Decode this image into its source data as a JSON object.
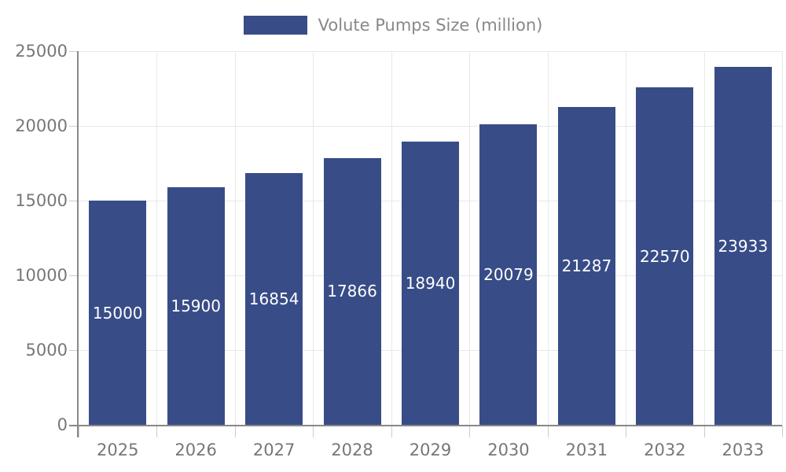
{
  "chart_data": {
    "type": "bar",
    "title": "",
    "legend_label": "Volute Pumps Size (million)",
    "legend_position": "top-center",
    "categories": [
      "2025",
      "2026",
      "2027",
      "2028",
      "2029",
      "2030",
      "2031",
      "2032",
      "2033"
    ],
    "values": [
      15000,
      15900,
      16854,
      17866,
      18940,
      20079,
      21287,
      22570,
      23933
    ],
    "bar_labels": [
      "15000",
      "15900",
      "16854",
      "17866",
      "18940",
      "20079",
      "21287",
      "22570",
      "23933"
    ],
    "xlabel": "",
    "ylabel": "",
    "ylim": [
      0,
      25000
    ],
    "yticks": [
      0,
      5000,
      10000,
      15000,
      20000,
      25000
    ],
    "ytick_labels": [
      "0",
      "5000",
      "10000",
      "15000",
      "20000",
      "25000"
    ],
    "grid": true,
    "colors": {
      "bar": "#384C87",
      "bar_label": "#FFFFFF",
      "axis_line": "#888888",
      "grid_line": "#E8E8E8",
      "tick_line": "#CCCCCC",
      "axis_text": "#777777",
      "legend_text": "#888888",
      "background": "#FFFFFF"
    }
  }
}
